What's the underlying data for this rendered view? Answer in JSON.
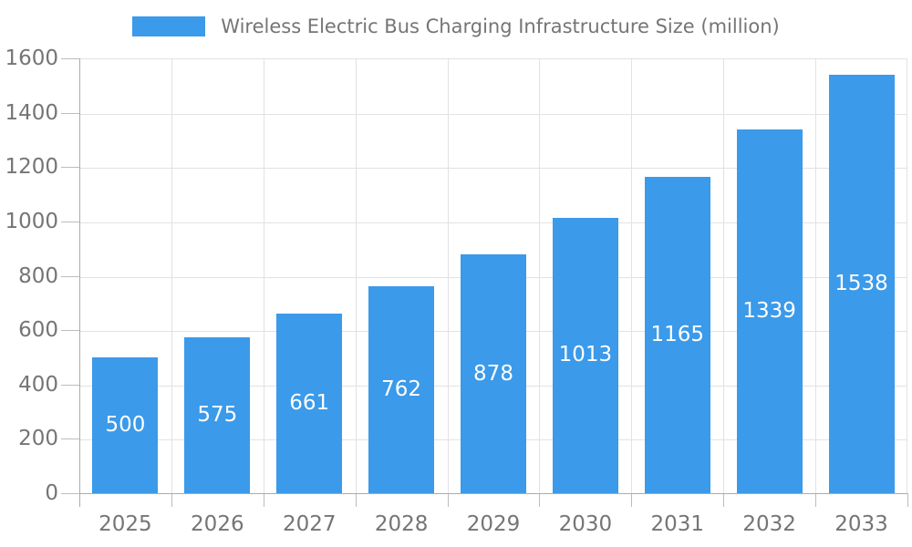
{
  "chart_data": {
    "type": "bar",
    "title": "Wireless Electric Bus Charging Infrastructure Size (million)",
    "categories": [
      "2025",
      "2026",
      "2027",
      "2028",
      "2029",
      "2030",
      "2031",
      "2032",
      "2033"
    ],
    "series": [
      {
        "name": "Wireless Electric Bus Charging Infrastructure Size (million)",
        "values": [
          500,
          575,
          661,
          762,
          878,
          1013,
          1165,
          1339,
          1538
        ]
      }
    ],
    "value_labels": [
      "500",
      "575",
      "661",
      "762",
      "878",
      "1013",
      "1165",
      "1339",
      "1538"
    ],
    "xlabel": "",
    "ylabel": "",
    "ylim": [
      0,
      1600
    ],
    "yticks": [
      0,
      200,
      400,
      600,
      800,
      1000,
      1200,
      1400,
      1600
    ],
    "grid": true,
    "legend_position": "top-center",
    "colors": {
      "bar": "#3b9ae9",
      "bar_value_text": "#ffffff",
      "axis_text": "#757575",
      "gridline": "#e2e2e2",
      "axis_line": "#acacac",
      "tick": "#bdbdbd",
      "background": "#ffffff"
    }
  }
}
